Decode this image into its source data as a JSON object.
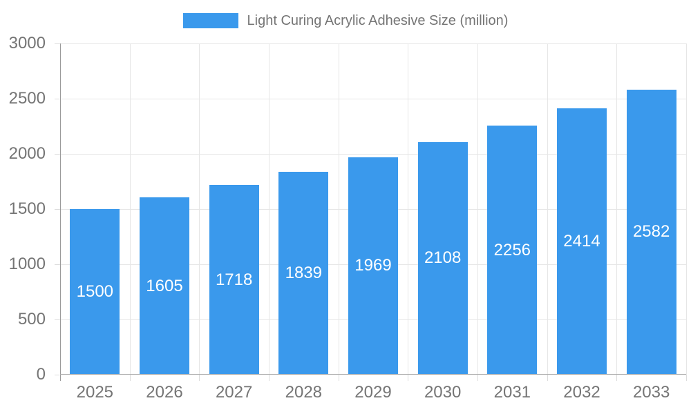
{
  "legend": {
    "label": "Light Curing Acrylic Adhesive Size (million)"
  },
  "chart_data": {
    "type": "bar",
    "title": "Light Curing Acrylic Adhesive Size (million)",
    "categories": [
      "2025",
      "2026",
      "2027",
      "2028",
      "2029",
      "2030",
      "2031",
      "2032",
      "2033"
    ],
    "values": [
      1500,
      1605,
      1718,
      1839,
      1969,
      2108,
      2256,
      2414,
      2582
    ],
    "xlabel": "",
    "ylabel": "",
    "ylim": [
      0,
      3000
    ],
    "yticks": [
      0,
      500,
      1000,
      1500,
      2000,
      2500,
      3000
    ],
    "grid": true,
    "legend_position": "top",
    "value_label_position": "inside-center"
  },
  "colors": {
    "bar": "#3A99EC",
    "grid": "#E6E6E6",
    "tick": "#DCDCDC",
    "axis_y": "#9A9A9A",
    "axis_x": "#ACACAC",
    "label_text": "#757575",
    "value_text": "#FFFFFF",
    "background": "#FFFFFF"
  }
}
